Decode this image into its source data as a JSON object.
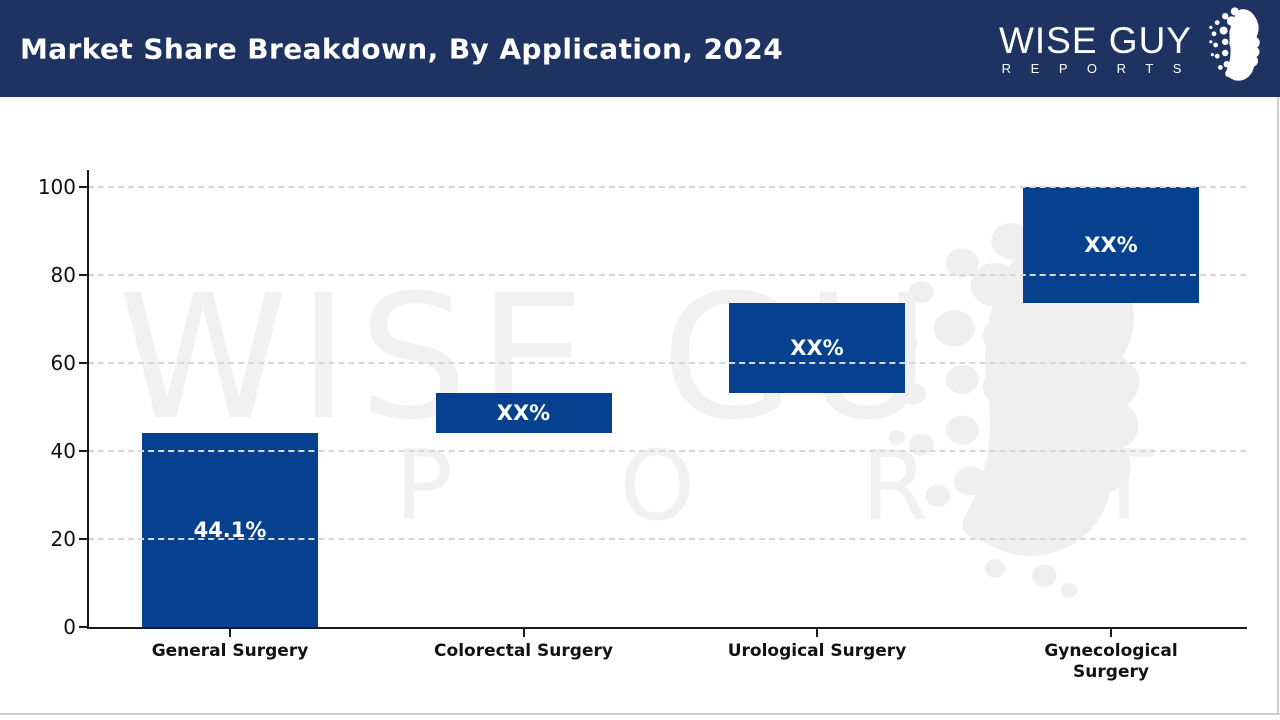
{
  "header": {
    "title": "Market Share Breakdown, By Application, 2024",
    "bg_color": "#1f3362",
    "logo": {
      "line1": "WISE GUY",
      "line2": "R E P O R T S"
    }
  },
  "watermark": {
    "line1": "WISE GU",
    "line2": "P O R T S"
  },
  "chart_data": {
    "type": "bar",
    "subtype": "waterfall-breakdown",
    "title": "Market Share Breakdown, By Application, 2024",
    "categories": [
      "General Surgery",
      "Colorectal Surgery",
      "Urological Surgery",
      "Gynecological Surgery"
    ],
    "segments": [
      {
        "category": "General Surgery",
        "start": 0,
        "end": 44.1,
        "label": "44.1%"
      },
      {
        "category": "Colorectal Surgery",
        "start": 44.1,
        "end": 53.2,
        "label": "XX%"
      },
      {
        "category": "Urological Surgery",
        "start": 53.2,
        "end": 73.6,
        "label": "XX%"
      },
      {
        "category": "Gynecological Surgery",
        "start": 73.6,
        "end": 100,
        "label": "XX%"
      }
    ],
    "ylim": [
      0,
      100
    ],
    "yticks": [
      0,
      20,
      40,
      60,
      80,
      100
    ],
    "xlabel": "",
    "ylabel": "",
    "grid": "horizontal-dashed",
    "grid_above_bars": true,
    "legend": "none",
    "bar_color": "#05418f",
    "label_color": "#ffffff"
  }
}
